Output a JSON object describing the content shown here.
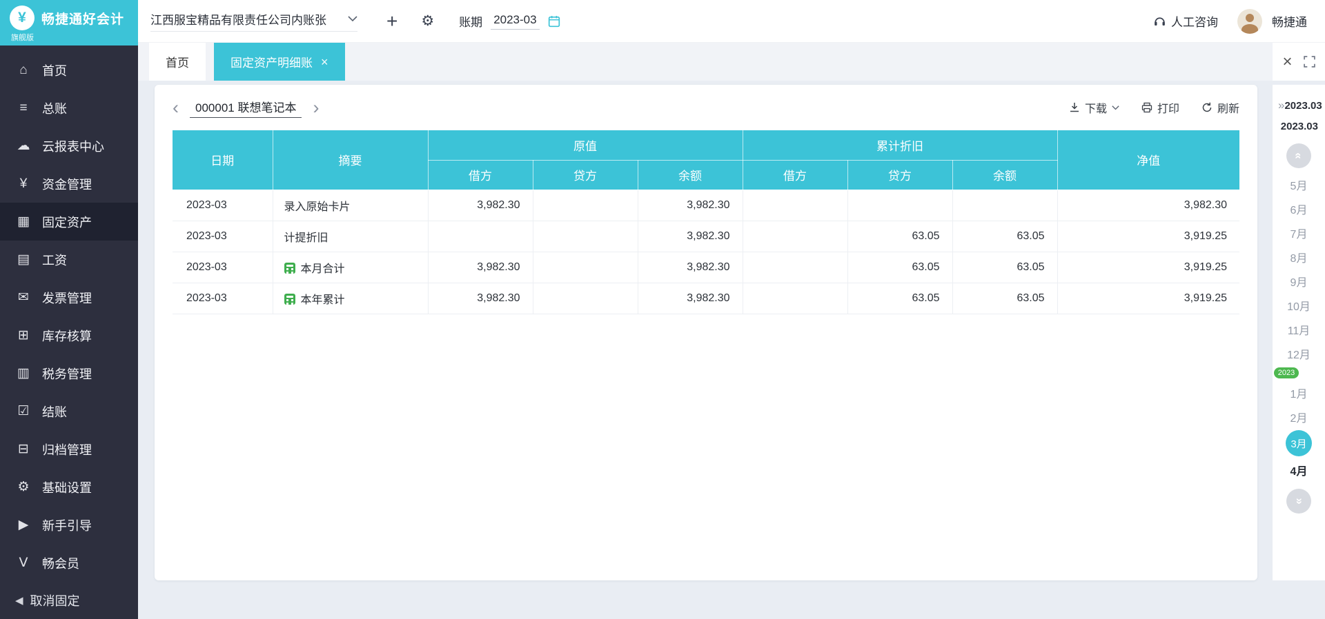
{
  "colors": {
    "accent": "#3cc3d7",
    "sidebar": "#2d2f3e",
    "green": "#3fae4e",
    "badge_green": "#4db84f"
  },
  "glyphs": {
    "close": "×",
    "collapse": "»",
    "prev": "‹",
    "next": "›",
    "scroll": "«"
  },
  "brand": {
    "name": "畅捷通好会计",
    "edition": "旗舰版",
    "logo_glyph": "¥"
  },
  "sidebar": {
    "items": [
      {
        "name": "sidebar-item-home",
        "icon": "home-icon",
        "glyph": "⌂",
        "label": "首页"
      },
      {
        "name": "sidebar-item-general-ledger",
        "icon": "ledger-icon",
        "glyph": "≡",
        "label": "总账"
      },
      {
        "name": "sidebar-item-cloud-reports",
        "icon": "cloud-report-icon",
        "glyph": "☁",
        "label": "云报表中心"
      },
      {
        "name": "sidebar-item-funds",
        "icon": "funds-icon",
        "glyph": "¥",
        "label": "资金管理"
      },
      {
        "name": "sidebar-item-fixed-assets",
        "icon": "fixed-assets-icon",
        "glyph": "▦",
        "label": "固定资产",
        "active": true
      },
      {
        "name": "sidebar-item-salary",
        "icon": "salary-icon",
        "glyph": "▤",
        "label": "工资"
      },
      {
        "name": "sidebar-item-invoices",
        "icon": "invoice-icon",
        "glyph": "✉",
        "label": "发票管理"
      },
      {
        "name": "sidebar-item-inventory",
        "icon": "inventory-icon",
        "glyph": "⊞",
        "label": "库存核算"
      },
      {
        "name": "sidebar-item-tax",
        "icon": "tax-icon",
        "glyph": "▥",
        "label": "税务管理"
      },
      {
        "name": "sidebar-item-closing",
        "icon": "closing-icon",
        "glyph": "☑",
        "label": "结账"
      },
      {
        "name": "sidebar-item-archive",
        "icon": "archive-icon",
        "glyph": "⊟",
        "label": "归档管理"
      },
      {
        "name": "sidebar-item-settings",
        "icon": "settings-icon",
        "glyph": "⚙",
        "label": "基础设置"
      },
      {
        "name": "sidebar-item-guide",
        "icon": "guide-icon",
        "glyph": "▶",
        "label": "新手引导"
      },
      {
        "name": "sidebar-item-member",
        "icon": "member-icon",
        "glyph": "Ⅴ",
        "label": "畅会员"
      }
    ],
    "pin_label": "取消固定",
    "pin_glyph": "◀"
  },
  "topbar": {
    "company": "江西服宝精品有限责任公司内账张",
    "plus_glyph": "+",
    "gear_glyph": "⚙",
    "period_label": "账期",
    "period_value": "2023-03",
    "support_label": "人工咨询",
    "user_name": "畅捷通"
  },
  "tabs": [
    {
      "name": "tab-home",
      "label": "首页",
      "active": false,
      "closable": false
    },
    {
      "name": "tab-fixed-asset-ledger",
      "label": "固定资产明细账",
      "active": true,
      "closable": true
    }
  ],
  "toolbar": {
    "asset_label": "000001 联想笔记本",
    "download_label": "下载",
    "print_label": "打印",
    "refresh_label": "刷新"
  },
  "table": {
    "headers": {
      "date": "日期",
      "summary": "摘要",
      "original": "原值",
      "accumulated": "累计折旧",
      "net": "净值",
      "debit": "借方",
      "credit": "贷方",
      "balance": "余额"
    },
    "rows": [
      {
        "date": "2023-03",
        "summary": "录入原始卡片",
        "has_icon": false,
        "orig_debit": "3,982.30",
        "orig_credit": "",
        "orig_balance": "3,982.30",
        "acc_debit": "",
        "acc_credit": "",
        "acc_balance": "",
        "net": "3,982.30"
      },
      {
        "date": "2023-03",
        "summary": "计提折旧",
        "has_icon": false,
        "orig_debit": "",
        "orig_credit": "",
        "orig_balance": "3,982.30",
        "acc_debit": "",
        "acc_credit": "63.05",
        "acc_balance": "63.05",
        "net": "3,919.25"
      },
      {
        "date": "2023-03",
        "summary": "本月合计",
        "has_icon": true,
        "orig_debit": "3,982.30",
        "orig_credit": "",
        "orig_balance": "3,982.30",
        "acc_debit": "",
        "acc_credit": "63.05",
        "acc_balance": "63.05",
        "net": "3,919.25"
      },
      {
        "date": "2023-03",
        "summary": "本年累计",
        "has_icon": true,
        "orig_debit": "3,982.30",
        "orig_credit": "",
        "orig_balance": "3,982.30",
        "acc_debit": "",
        "acc_credit": "63.05",
        "acc_balance": "63.05",
        "net": "3,919.25"
      }
    ]
  },
  "daterail": {
    "period_top": "2023.03",
    "period_current": "2023.03",
    "months": [
      {
        "name": "month-5",
        "label": "5月"
      },
      {
        "name": "month-6",
        "label": "6月"
      },
      {
        "name": "month-7",
        "label": "7月"
      },
      {
        "name": "month-8",
        "label": "8月"
      },
      {
        "name": "month-9",
        "label": "9月"
      },
      {
        "name": "month-10",
        "label": "10月"
      },
      {
        "name": "month-11",
        "label": "11月"
      },
      {
        "name": "month-12",
        "label": "12月"
      },
      {
        "name": "month-1",
        "label": "1月",
        "year_badge": "2023"
      },
      {
        "name": "month-2",
        "label": "2月"
      },
      {
        "name": "month-3",
        "label": "3月",
        "active": true
      },
      {
        "name": "month-4",
        "label": "4月",
        "emphasis": true
      }
    ]
  }
}
